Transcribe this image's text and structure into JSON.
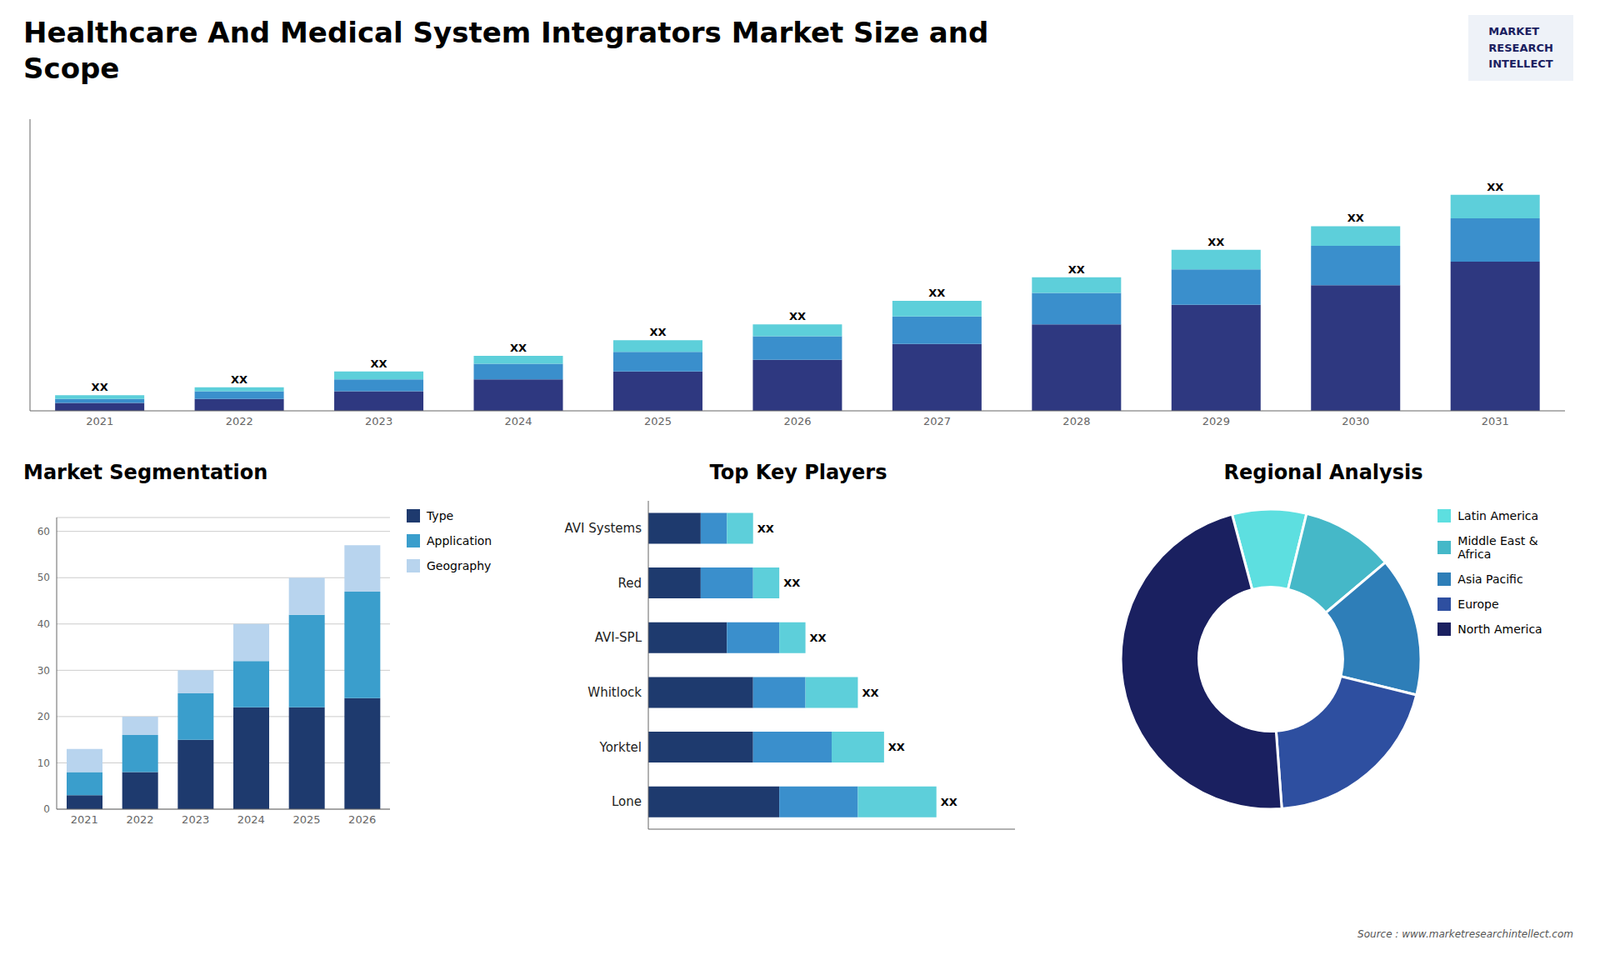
{
  "chart_data": [
    {
      "type": "bar",
      "title": "Healthcare And Medical System Integrators Market Size and\nScope",
      "stacked": true,
      "categories": [
        "2021",
        "2022",
        "2023",
        "2024",
        "2025",
        "2026",
        "2027",
        "2028",
        "2029",
        "2030",
        "2031"
      ],
      "series": [
        {
          "color": "#2e3880",
          "values": [
            2,
            3,
            5,
            8,
            10,
            13,
            17,
            22,
            27,
            32,
            38
          ]
        },
        {
          "color": "#3a8fcc",
          "values": [
            1,
            2,
            3,
            4,
            5,
            6,
            7,
            8,
            9,
            10,
            11
          ]
        },
        {
          "color": "#5dcfda",
          "values": [
            1,
            1,
            2,
            2,
            3,
            3,
            4,
            4,
            5,
            5,
            6
          ],
          "value_labels": [
            "XX",
            "XX",
            "XX",
            "XX",
            "XX",
            "XX",
            "XX",
            "XX",
            "XX",
            "XX",
            "XX"
          ]
        }
      ],
      "ylim": [
        0,
        74.25
      ],
      "tick_labels": "x",
      "grid": false,
      "annotations": [
        "MARKET",
        "RESEARCH",
        "INTELLECT",
        "Source : www.marketresearchintellect.com"
      ]
    },
    {
      "type": "bar",
      "title": "Market Segmentation",
      "stacked": true,
      "categories": [
        "2021",
        "2022",
        "2023",
        "2024",
        "2025",
        "2026"
      ],
      "series": [
        {
          "name": "Type",
          "color": "#1e3a6e",
          "values": [
            3,
            8,
            15,
            22,
            22,
            24
          ]
        },
        {
          "name": "Application",
          "color": "#3a9ecc",
          "values": [
            5,
            8,
            10,
            10,
            20,
            23
          ]
        },
        {
          "name": "Geography",
          "color": "#b8d4ee",
          "values": [
            5,
            4,
            5,
            8,
            8,
            10
          ]
        }
      ],
      "ylim": [
        0,
        63
      ],
      "yticks": [
        0,
        10,
        20,
        30,
        40,
        50,
        60
      ],
      "grid": true,
      "legend": "right"
    },
    {
      "type": "bar",
      "title": "Top Key Players",
      "stacked": true,
      "orientation": "horizontal",
      "categories": [
        "Lone",
        "Yorktel",
        "Whitlock",
        "AVI-SPL",
        "Red",
        "AVI Systems"
      ],
      "series": [
        {
          "color": "#1e3a6e",
          "values": [
            5,
            4,
            4,
            3,
            2,
            2
          ]
        },
        {
          "color": "#3a8fcc",
          "values": [
            3,
            3,
            2,
            2,
            2,
            1
          ]
        },
        {
          "color": "#5dcfda",
          "values": [
            3,
            2,
            2,
            1,
            1,
            1
          ],
          "value_labels": [
            "XX",
            "XX",
            "XX",
            "XX",
            "XX",
            "XX"
          ]
        }
      ],
      "xlim": [
        0,
        14
      ],
      "tick_labels": "y",
      "grid": false
    },
    {
      "type": "pie",
      "title": "Regional Analysis",
      "categories": [
        "Latin America",
        "Middle East &\nAfrica",
        "Asia Pacific",
        "Europe",
        "North America"
      ],
      "values": [
        8,
        10,
        15,
        20,
        47
      ],
      "colors": [
        "#5ddfe0",
        "#45b8c8",
        "#2e7eb8",
        "#2e4fa0",
        "#1a2060"
      ],
      "legend": "right"
    }
  ]
}
